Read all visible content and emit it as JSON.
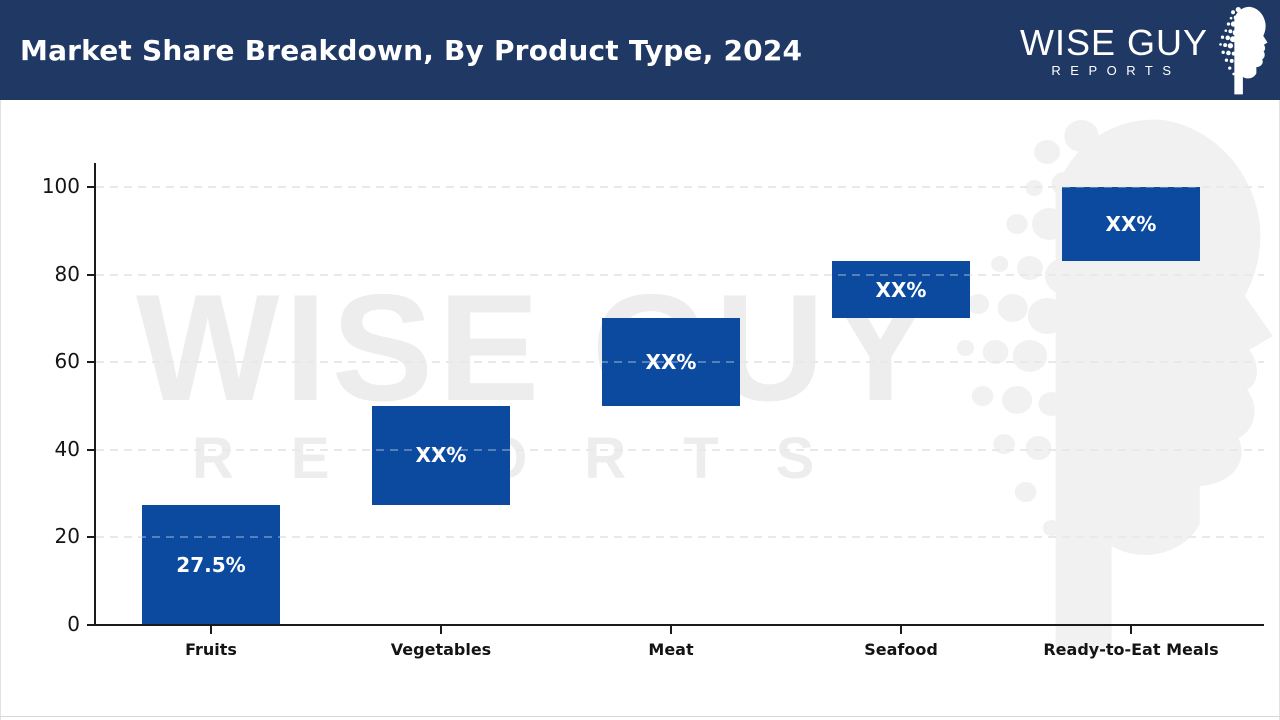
{
  "header": {
    "title": "Market Share Breakdown, By Product Type, 2024",
    "bg_color": "#203864",
    "logo": {
      "line1": "WISE GUY",
      "line2": "REPORTS"
    }
  },
  "watermark": {
    "line1": "WISE GUY",
    "line2": "REPORTS"
  },
  "chart_data": {
    "type": "bar",
    "subtype": "waterfall",
    "title": "Market Share Breakdown, By Product Type, 2024",
    "categories": [
      "Fruits",
      "Vegetables",
      "Meat",
      "Seafood",
      "Ready-to-Eat Meals"
    ],
    "series": [
      {
        "name": "Market Share (%)",
        "segments": [
          {
            "category": "Fruits",
            "start": 0,
            "end": 27.5,
            "label": "27.5%"
          },
          {
            "category": "Vegetables",
            "start": 27.5,
            "end": 50,
            "label": "XX%"
          },
          {
            "category": "Meat",
            "start": 50,
            "end": 70,
            "label": "XX%"
          },
          {
            "category": "Seafood",
            "start": 70,
            "end": 83,
            "label": "XX%"
          },
          {
            "category": "Ready-to-Eat Meals",
            "start": 83,
            "end": 100,
            "label": "XX%"
          }
        ]
      }
    ],
    "yticks": [
      0,
      20,
      40,
      60,
      80,
      100
    ],
    "ylim": [
      0,
      105
    ],
    "xlabel": "",
    "ylabel": "",
    "grid": "horizontal-dashed",
    "legend": "none",
    "bar_color": "#0b4a9f",
    "axis_color": "#1a1a1a",
    "gridline_color": "#e0e0e0"
  }
}
